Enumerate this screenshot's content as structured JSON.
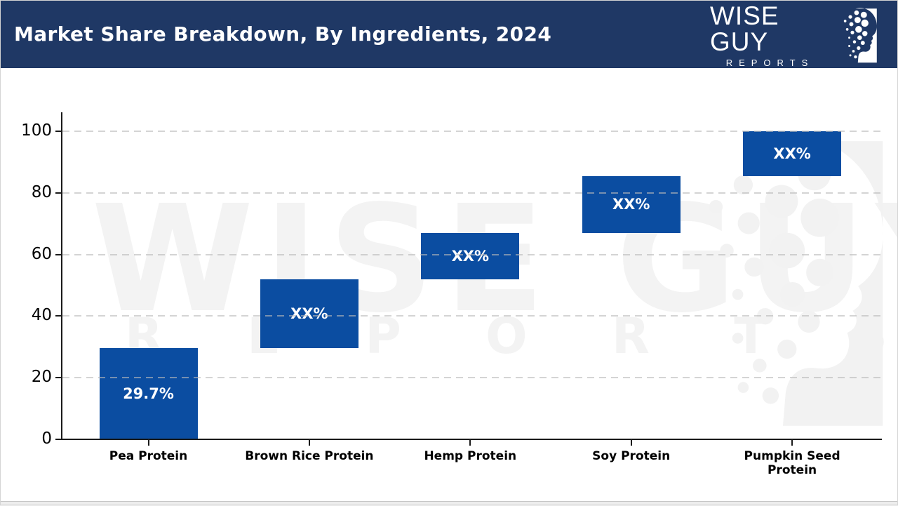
{
  "header": {
    "title": "Market Share Breakdown, By Ingredients, 2024",
    "logo": {
      "line1": "WISE GUY",
      "line2": "REPORTS",
      "icon": "dotted-head-profile"
    }
  },
  "watermark": {
    "line1": "WISE GUY",
    "line2": "R E P O R T S",
    "icon": "dotted-head-profile"
  },
  "chart_data": {
    "type": "bar",
    "subtype": "waterfall",
    "title": "Market Share Breakdown, By Ingredients, 2024",
    "categories": [
      "Pea Protein",
      "Brown Rice Protein",
      "Hemp Protein",
      "Soy Protein",
      "Pumpkin Seed Protein"
    ],
    "segments": [
      {
        "category": "Pea Protein",
        "start": 0,
        "end": 29.7,
        "label": "29.7%"
      },
      {
        "category": "Brown Rice Protein",
        "start": 29.7,
        "end": 52.0,
        "label": "XX%"
      },
      {
        "category": "Hemp Protein",
        "start": 52.0,
        "end": 67.0,
        "label": "XX%"
      },
      {
        "category": "Soy Protein",
        "start": 67.0,
        "end": 85.5,
        "label": "XX%"
      },
      {
        "category": "Pumpkin Seed Protein",
        "start": 85.5,
        "end": 100.0,
        "label": "XX%"
      }
    ],
    "yticks": [
      0,
      20,
      40,
      60,
      80,
      100
    ],
    "ylim": [
      0,
      106
    ],
    "xlabel": "",
    "ylabel": "",
    "grid": true,
    "grid_style": "dashed",
    "legend": false,
    "bar_color": "#0b4da1",
    "bar_label_color": "#ffffff",
    "axis_color": "#1a1a1a"
  },
  "colors": {
    "header_bg": "#1f3865",
    "bar": "#0b4da1",
    "grid": "#bcbcbc",
    "watermark": "#f3f3f3",
    "page_border": "#d4d4d4"
  }
}
